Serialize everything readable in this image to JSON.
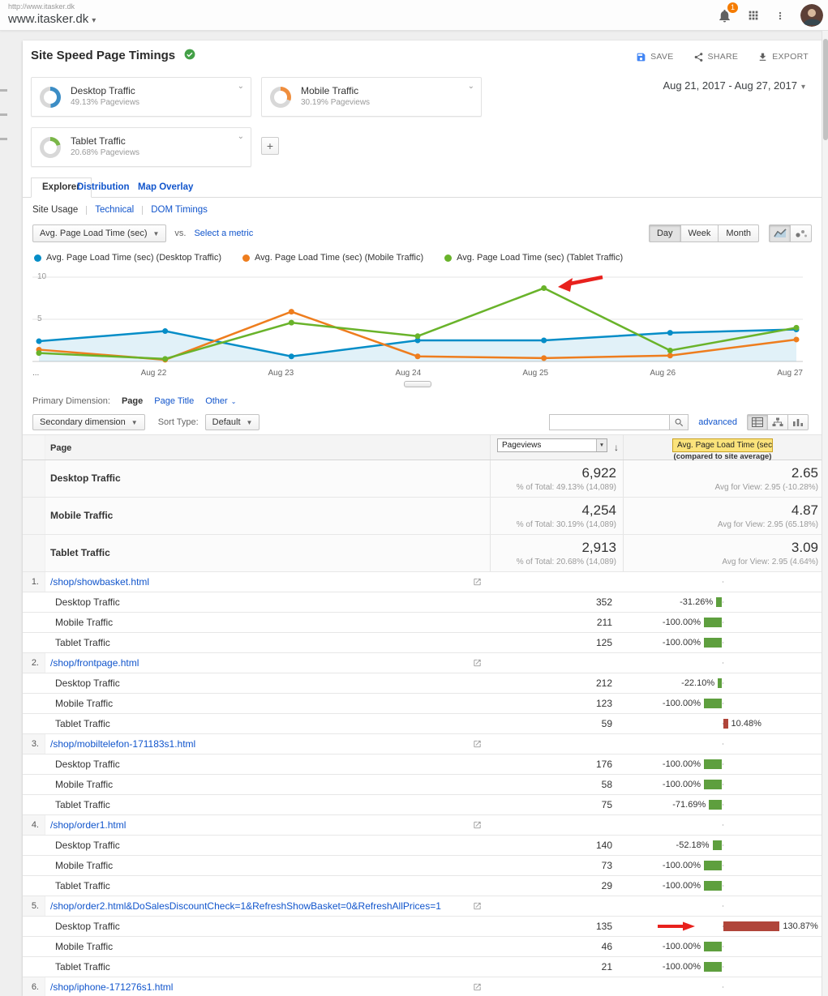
{
  "topbar": {
    "url": "http://www.itasker.dk",
    "account": "www.itasker.dk",
    "notification_count": "1"
  },
  "report": {
    "title": "Site Speed Page Timings",
    "save_label": "SAVE",
    "share_label": "SHARE",
    "export_label": "EXPORT",
    "date_range": "Aug 21, 2017 - Aug 27, 2017"
  },
  "segments": [
    {
      "name": "Desktop Traffic",
      "detail": "49.13% Pageviews",
      "pct": 49.13,
      "color": "#3c8dc5"
    },
    {
      "name": "Mobile Traffic",
      "detail": "30.19% Pageviews",
      "pct": 30.19,
      "color": "#ef8e3e"
    },
    {
      "name": "Tablet Traffic",
      "detail": "20.68% Pageviews",
      "pct": 20.68,
      "color": "#7ab648"
    }
  ],
  "add_segment_label": "+",
  "tabs": [
    "Explorer",
    "Distribution",
    "Map Overlay"
  ],
  "subtabs": [
    "Site Usage",
    "Technical",
    "DOM Timings"
  ],
  "metric_bar": {
    "metric": "Avg. Page Load Time (sec)",
    "vs": "vs.",
    "select_metric": "Select a metric",
    "granularity": [
      "Day",
      "Week",
      "Month"
    ],
    "active_granularity": "Day"
  },
  "chart_data": {
    "type": "line",
    "x": [
      "...",
      "Aug 22",
      "Aug 23",
      "Aug 24",
      "Aug 25",
      "Aug 26",
      "Aug 27"
    ],
    "ylim": [
      0,
      10
    ],
    "yticks": [
      5,
      10
    ],
    "grid": true,
    "legend_position": "top",
    "series": [
      {
        "name": "Avg. Page Load Time (sec) (Desktop Traffic)",
        "color": "#058dc7",
        "area": true,
        "values": [
          2.4,
          3.6,
          0.6,
          2.5,
          2.5,
          3.4,
          3.8
        ]
      },
      {
        "name": "Avg. Page Load Time (sec) (Mobile Traffic)",
        "color": "#ee7d1e",
        "values": [
          1.4,
          0.2,
          5.9,
          0.6,
          0.4,
          0.7,
          2.6
        ]
      },
      {
        "name": "Avg. Page Load Time (sec) (Tablet Traffic)",
        "color": "#69b32a",
        "values": [
          1.0,
          0.3,
          4.6,
          3.0,
          8.7,
          1.3,
          4.0
        ]
      }
    ]
  },
  "annotations": {
    "chart_arrow": true,
    "table_arrow_row": "/shop/order2.html 130.87%"
  },
  "dimension_bar": {
    "label": "Primary Dimension:",
    "primary": "Page",
    "page_title": "Page Title",
    "other": "Other"
  },
  "controls": {
    "secondary_dimension": "Secondary dimension",
    "sort_label": "Sort Type:",
    "sort_value": "Default",
    "search_placeholder": "",
    "advanced": "advanced"
  },
  "table": {
    "columns": {
      "page": "Page",
      "pageviews": "Pageviews",
      "metric": "Avg. Page Load Time (sec)",
      "metric_sub": "(compared to site average)",
      "sort_arrow": "↓"
    },
    "summary": [
      {
        "label": "Desktop Traffic",
        "pageviews": "6,922",
        "pageviews_sub": "% of Total: 49.13% (14,089)",
        "metric": "2.65",
        "metric_sub": "Avg for View: 2.95 (-10.28%)"
      },
      {
        "label": "Mobile Traffic",
        "pageviews": "4,254",
        "pageviews_sub": "% of Total: 30.19% (14,089)",
        "metric": "4.87",
        "metric_sub": "Avg for View: 2.95 (65.18%)"
      },
      {
        "label": "Tablet Traffic",
        "pageviews": "2,913",
        "pageviews_sub": "% of Total: 20.68% (14,089)",
        "metric": "3.09",
        "metric_sub": "Avg for View: 2.95 (4.64%)"
      }
    ],
    "rows": [
      {
        "num": "1.",
        "url": "/shop/showbasket.html",
        "subs": [
          {
            "label": "Desktop Traffic",
            "pageviews": "352",
            "delta": -31.26,
            "delta_label": "-31.26%"
          },
          {
            "label": "Mobile Traffic",
            "pageviews": "211",
            "delta": -100,
            "delta_label": "-100.00%"
          },
          {
            "label": "Tablet Traffic",
            "pageviews": "125",
            "delta": -100,
            "delta_label": "-100.00%"
          }
        ]
      },
      {
        "num": "2.",
        "url": "/shop/frontpage.html",
        "subs": [
          {
            "label": "Desktop Traffic",
            "pageviews": "212",
            "delta": -22.1,
            "delta_label": "-22.10%"
          },
          {
            "label": "Mobile Traffic",
            "pageviews": "123",
            "delta": -100,
            "delta_label": "-100.00%"
          },
          {
            "label": "Tablet Traffic",
            "pageviews": "59",
            "delta": 10.48,
            "delta_label": "10.48%"
          }
        ]
      },
      {
        "num": "3.",
        "url": "/shop/mobiltelefon-171183s1.html",
        "subs": [
          {
            "label": "Desktop Traffic",
            "pageviews": "176",
            "delta": -100,
            "delta_label": "-100.00%"
          },
          {
            "label": "Mobile Traffic",
            "pageviews": "58",
            "delta": -100,
            "delta_label": "-100.00%"
          },
          {
            "label": "Tablet Traffic",
            "pageviews": "75",
            "delta": -71.69,
            "delta_label": "-71.69%"
          }
        ]
      },
      {
        "num": "4.",
        "url": "/shop/order1.html",
        "subs": [
          {
            "label": "Desktop Traffic",
            "pageviews": "140",
            "delta": -52.18,
            "delta_label": "-52.18%"
          },
          {
            "label": "Mobile Traffic",
            "pageviews": "73",
            "delta": -100,
            "delta_label": "-100.00%"
          },
          {
            "label": "Tablet Traffic",
            "pageviews": "29",
            "delta": -100,
            "delta_label": "-100.00%"
          }
        ]
      },
      {
        "num": "5.",
        "url": "/shop/order2.html&DoSalesDiscountCheck=1&RefreshShowBasket=0&RefreshAllPrices=1",
        "subs": [
          {
            "label": "Desktop Traffic",
            "pageviews": "135",
            "delta": 130.87,
            "delta_label": "130.87%",
            "arrow": true
          },
          {
            "label": "Mobile Traffic",
            "pageviews": "46",
            "delta": -100,
            "delta_label": "-100.00%"
          },
          {
            "label": "Tablet Traffic",
            "pageviews": "21",
            "delta": -100,
            "delta_label": "-100.00%"
          }
        ]
      },
      {
        "num": "6.",
        "url": "/shop/iphone-171276s1.html",
        "subs": []
      }
    ]
  },
  "colors": {
    "positive_bar": "#b0453a",
    "negative_bar": "#5e9f3e",
    "annotation": "#e8211d",
    "accent_blue": "#1155cc"
  }
}
